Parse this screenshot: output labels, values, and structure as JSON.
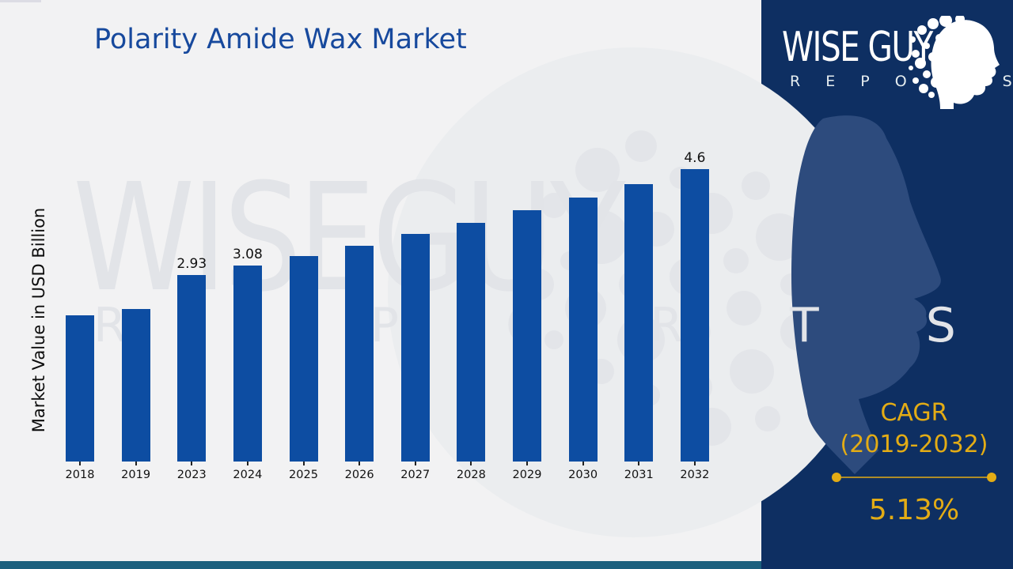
{
  "chart_data": {
    "type": "bar",
    "title": "Polarity Amide Wax Market",
    "xlabel": "",
    "ylabel": "Market Value in USD Billion",
    "categories": [
      "2018",
      "2019",
      "2023",
      "2024",
      "2025",
      "2026",
      "2027",
      "2028",
      "2029",
      "2030",
      "2031",
      "2032"
    ],
    "values": [
      2.3,
      2.4,
      2.93,
      3.08,
      3.24,
      3.4,
      3.58,
      3.76,
      3.96,
      4.16,
      4.37,
      4.6
    ],
    "point_labels": {
      "2023": "2.93",
      "2024": "3.08",
      "2032": "4.6"
    },
    "ylim": [
      0,
      5
    ],
    "grid": false,
    "legend": "none",
    "bar_color": "#0d4da2"
  },
  "brand": {
    "logo_line1": "WISE GUY",
    "logo_line2": "R E P O R T S",
    "watermark_line1": "WISEGUY",
    "watermark_line2": "R E P O R T S"
  },
  "cagr": {
    "line1": "CAGR",
    "line2": "(2019-2032)",
    "value": "5.13%"
  },
  "colors": {
    "bar_blue": "#0d4da2",
    "panel_navy": "#0e2f62",
    "accent_gold": "#e3ac15",
    "teal_strip": "#1b607e",
    "title_blue": "#17499d",
    "watermark_gray": "#e2e4e8"
  }
}
